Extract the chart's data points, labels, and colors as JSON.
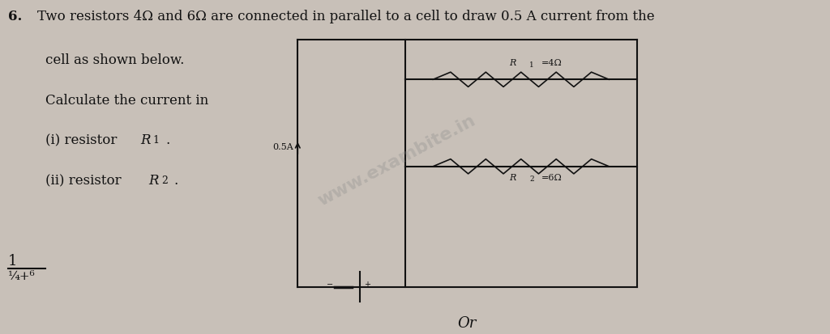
{
  "bg_color": "#c8c0b8",
  "text_color": "#111111",
  "title_line1": "6.  Two resistors 4Ω and 6Ω are connected in parallel to a cell to draw 0.5 A current from the",
  "title_line2": "cell as shown below.",
  "line3": "Calculate the current in",
  "line4_i": "(i) resistor ",
  "line4_R": "R",
  "line4_sub": "1",
  "line4_end": ".",
  "line5_i": "(ii) resistor ",
  "line5_R": "R",
  "line5_sub": "2",
  "line5_end": ".",
  "or_label": "Or",
  "circuit_label_R1_main": "R",
  "circuit_label_R1_sub": "1",
  "circuit_label_R1_val": "=4Ω",
  "circuit_label_R2_main": "R",
  "circuit_label_R2_sub": "2",
  "circuit_label_R2_val": "=6Ω",
  "circuit_label_I": "0.5A",
  "font_size_main": 12,
  "font_size_circuit": 8
}
